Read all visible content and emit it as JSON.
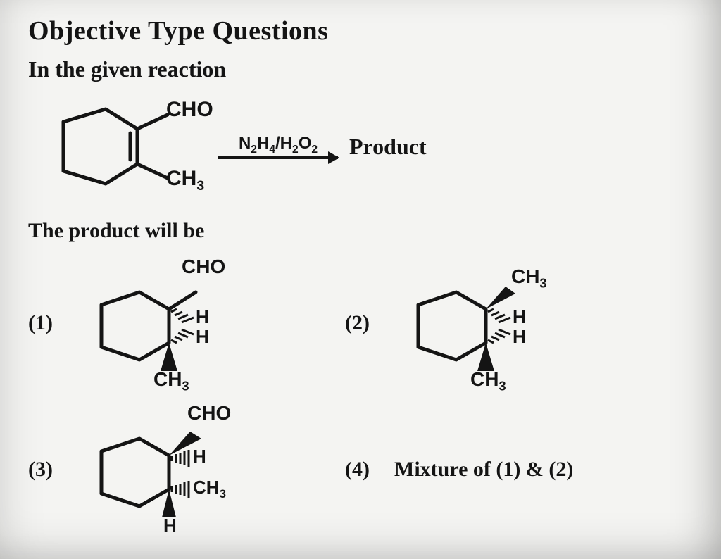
{
  "heading": "Objective Type Questions",
  "subheading": "In the given reaction",
  "reagent_html": "N<sub>2</sub>H<sub>4</sub>/H<sub>2</sub>O<sub>2</sub>",
  "product_word": "Product",
  "leadin": "The product will be",
  "labels": {
    "cho": "CHO",
    "ch3": "CH",
    "ch3_sub": "3",
    "h": "H"
  },
  "options": {
    "n1": "(1)",
    "n2": "(2)",
    "n3": "(3)",
    "n4": "(4)",
    "text4": "Mixture of (1) & (2)"
  },
  "style": {
    "page_bg": "#f4f4f2",
    "ink": "#141414",
    "heading_fontsize": 38,
    "sub_fontsize": 32,
    "optnum_fontsize": 30,
    "label_fontsize_large": 26,
    "label_fontsize_med": 24,
    "bond_width": 5
  }
}
